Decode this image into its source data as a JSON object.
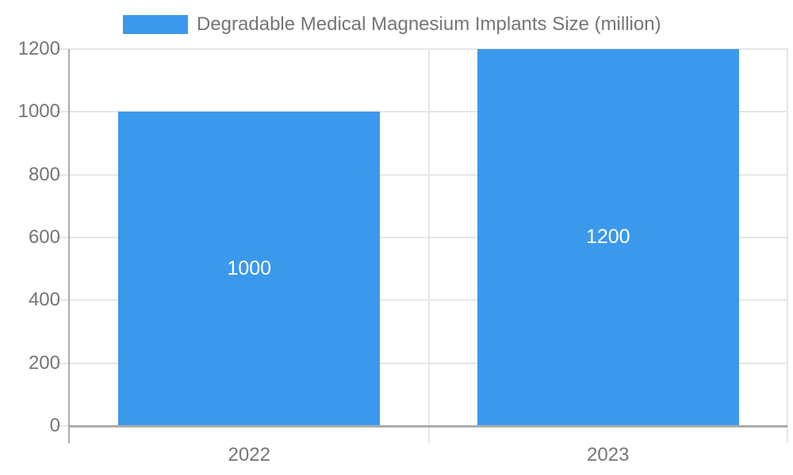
{
  "chart_data": {
    "type": "bar",
    "title": "Degradable Medical Magnesium Implants Size (million)",
    "legend_position": "top",
    "categories": [
      "2022",
      "2023"
    ],
    "series": [
      {
        "name": "Degradable Medical Magnesium Implants Size (million)",
        "values": [
          1000,
          1200
        ],
        "data_labels": [
          "1000",
          "1200"
        ]
      }
    ],
    "xlabel": "",
    "ylabel": "",
    "ylim": [
      0,
      1200
    ],
    "yticks": [
      0,
      200,
      400,
      600,
      800,
      1000,
      1200
    ],
    "grid": true,
    "colors": {
      "bar": "#3B99EC",
      "gridline": "#E6E6E6",
      "axis": "#ABABAB",
      "tick_text": "#757575",
      "bar_label_text": "#FFFFFF",
      "background": "#FFFFFF"
    }
  }
}
